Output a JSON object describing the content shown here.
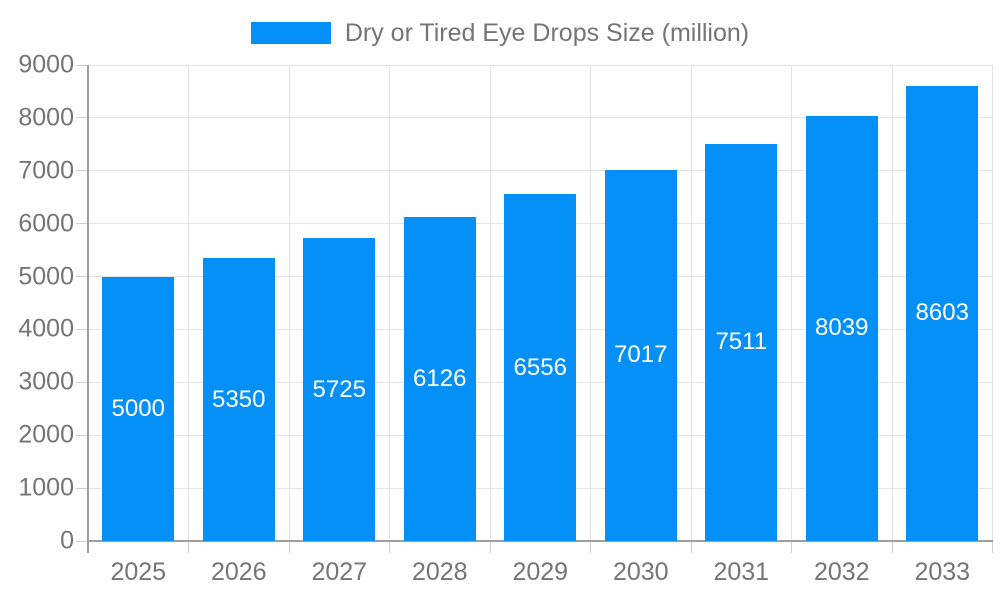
{
  "legend": {
    "label": "Dry or Tired Eye Drops Size (million)"
  },
  "chart_data": {
    "type": "bar",
    "title": "Dry or Tired Eye Drops Size (million)",
    "categories": [
      "2025",
      "2026",
      "2027",
      "2028",
      "2029",
      "2030",
      "2031",
      "2032",
      "2033"
    ],
    "values": [
      5000,
      5350,
      5725,
      6126,
      6556,
      7017,
      7511,
      8039,
      8603
    ],
    "xlabel": "",
    "ylabel": "",
    "ylim": [
      0,
      9000
    ],
    "yticks": [
      0,
      1000,
      2000,
      3000,
      4000,
      5000,
      6000,
      7000,
      8000,
      9000
    ],
    "grid": true,
    "legend_position": "top",
    "value_labels_inside_bars": true,
    "colors": {
      "bar": "#0590F8",
      "bar_value_label": "#FFFFFF",
      "axis_label": "#757575",
      "legend_text": "#757575",
      "grid_line": "#E3E3E3",
      "axis_line": "#9E9E9E",
      "tick_mark": "#CFCFCF",
      "background": "#FFFFFF"
    }
  }
}
